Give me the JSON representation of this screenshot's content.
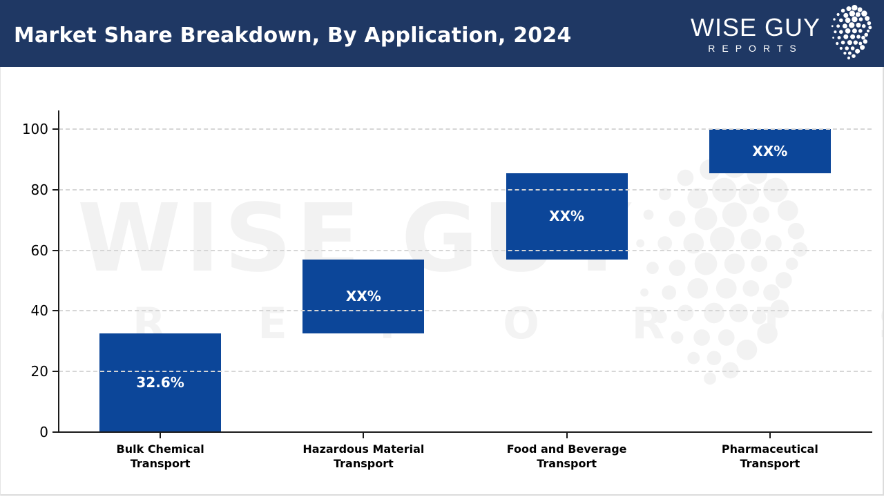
{
  "header": {
    "title": "Market Share Breakdown, By Application, 2024",
    "background_color": "#1f3864",
    "logo": {
      "brand_line1": "WISE GUY",
      "brand_line2": "REPORTS"
    }
  },
  "watermark": {
    "line1": "WISE GUY",
    "line2": "R E P O R T S"
  },
  "chart_data": {
    "type": "bar",
    "subtype": "waterfall",
    "title": "Market Share Breakdown, By Application, 2024",
    "categories": [
      "Bulk Chemical\nTransport",
      "Hazardous Material\nTransport",
      "Food and Beverage\nTransport",
      "Pharmaceutical\nTransport"
    ],
    "segments": [
      {
        "category": "Bulk Chemical Transport",
        "start": 0,
        "end": 32.6,
        "value": 32.6,
        "label": "32.6%"
      },
      {
        "category": "Hazardous Material Transport",
        "start": 32.6,
        "end": 57.0,
        "value": 24.4,
        "label": "XX%"
      },
      {
        "category": "Food and Beverage Transport",
        "start": 57.0,
        "end": 85.5,
        "value": 28.5,
        "label": "XX%"
      },
      {
        "category": "Pharmaceutical Transport",
        "start": 85.5,
        "end": 100,
        "value": 14.5,
        "label": "XX%"
      }
    ],
    "yticks": [
      0,
      20,
      40,
      60,
      80,
      100
    ],
    "ylim": [
      0,
      106
    ],
    "xlabel": "",
    "ylabel": "",
    "grid": "horizontal-dashed",
    "legend": "none",
    "bar_color": "#0c4699",
    "bar_label_color": "#ffffff",
    "axis_color": "#1a1a1a",
    "gridline_color": "#d6d6d6",
    "watermark_color": "#f2f2f2"
  }
}
